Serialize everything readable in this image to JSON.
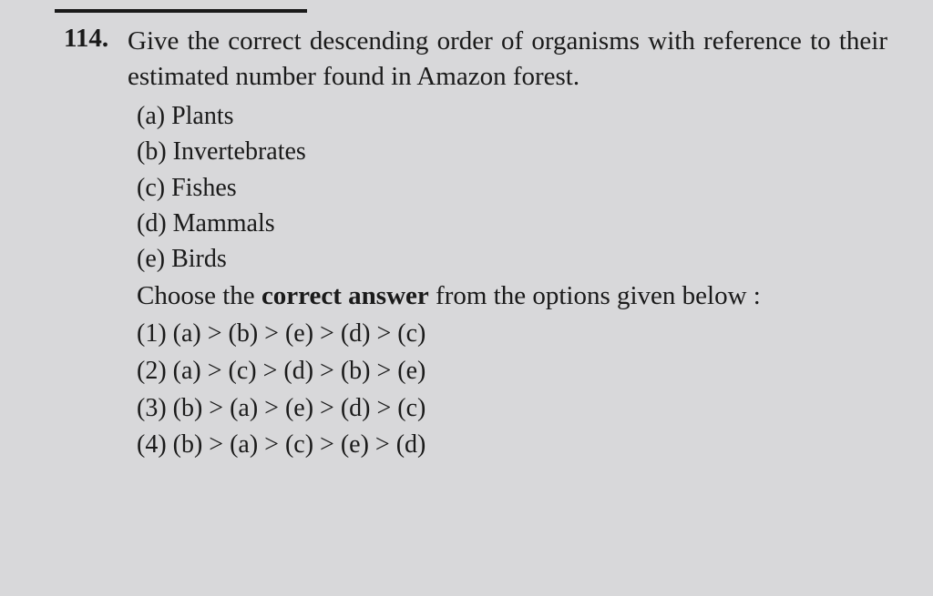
{
  "question": {
    "number": "114.",
    "text": "Give the correct descending order of organisms with reference to their estimated number found in Amazon forest."
  },
  "listOptions": [
    {
      "label": "(a)",
      "text": "Plants"
    },
    {
      "label": "(b)",
      "text": "Invertebrates"
    },
    {
      "label": "(c)",
      "text": "Fishes"
    },
    {
      "label": "(d)",
      "text": "Mammals"
    },
    {
      "label": "(e)",
      "text": "Birds"
    }
  ],
  "instruction": {
    "prefix": "Choose the ",
    "bold": "correct answer",
    "suffix": " from the options given below :"
  },
  "answerOptions": [
    {
      "label": "(1)",
      "text": "(a) > (b) > (e) > (d) > (c)"
    },
    {
      "label": "(2)",
      "text": "(a) > (c) > (d) > (b) > (e)"
    },
    {
      "label": "(3)",
      "text": "(b) > (a) > (e) > (d) > (c)"
    },
    {
      "label": "(4)",
      "text": "(b) > (a) > (c) > (e) > (d)"
    }
  ],
  "styling": {
    "background_color": "#d8d8da",
    "text_color": "#1a1a1a",
    "question_fontsize": 29,
    "option_fontsize": 28,
    "font_family": "Georgia, Times New Roman, serif"
  }
}
